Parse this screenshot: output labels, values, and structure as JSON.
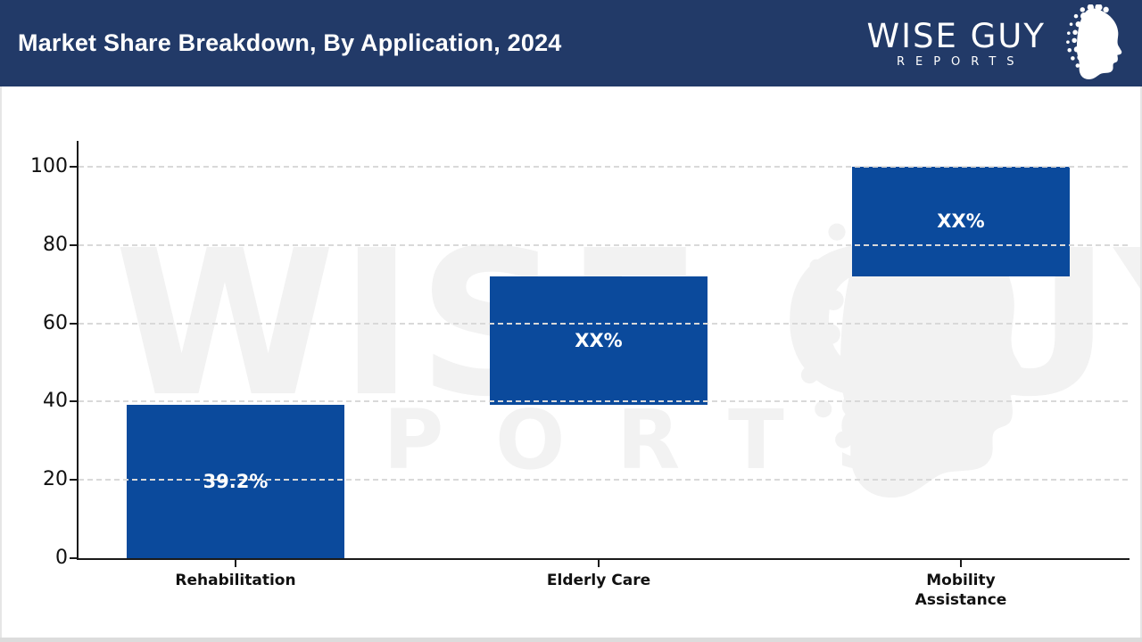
{
  "header": {
    "title": "Market Share Breakdown, By Application, 2024",
    "bg_color": "#223A68",
    "logo": {
      "line1": "WISE GUY",
      "line2": "REPORTS"
    }
  },
  "watermark": {
    "line1": "WISE GUY",
    "line2": "REPORTS",
    "color": "#F2F2F2"
  },
  "chart_data": {
    "type": "bar",
    "subtype": "floating-waterfall",
    "title": "Market Share Breakdown, By Application, 2024",
    "categories": [
      "Rehabilitation",
      "Elderly Care",
      "Mobility Assistance"
    ],
    "bars": [
      {
        "category": "Rehabilitation",
        "start": 0,
        "end": 39.2,
        "label": "39.2%"
      },
      {
        "category": "Elderly Care",
        "start": 39.2,
        "end": 72,
        "label": "XX%"
      },
      {
        "category": "Mobility Assistance",
        "start": 72,
        "end": 100,
        "label": "XX%"
      }
    ],
    "xlabel": "",
    "ylabel": "",
    "yticks": [
      0,
      20,
      40,
      60,
      80,
      100
    ],
    "ylim": [
      0,
      106
    ],
    "grid": "horizontal-dashed",
    "legend": "none",
    "colors": {
      "bar": "#0B4A9C",
      "bar_label": "#FFFFFF",
      "grid": "#D9D9D9",
      "axis": "#1a1a1a",
      "tick_label": "#111111"
    }
  }
}
